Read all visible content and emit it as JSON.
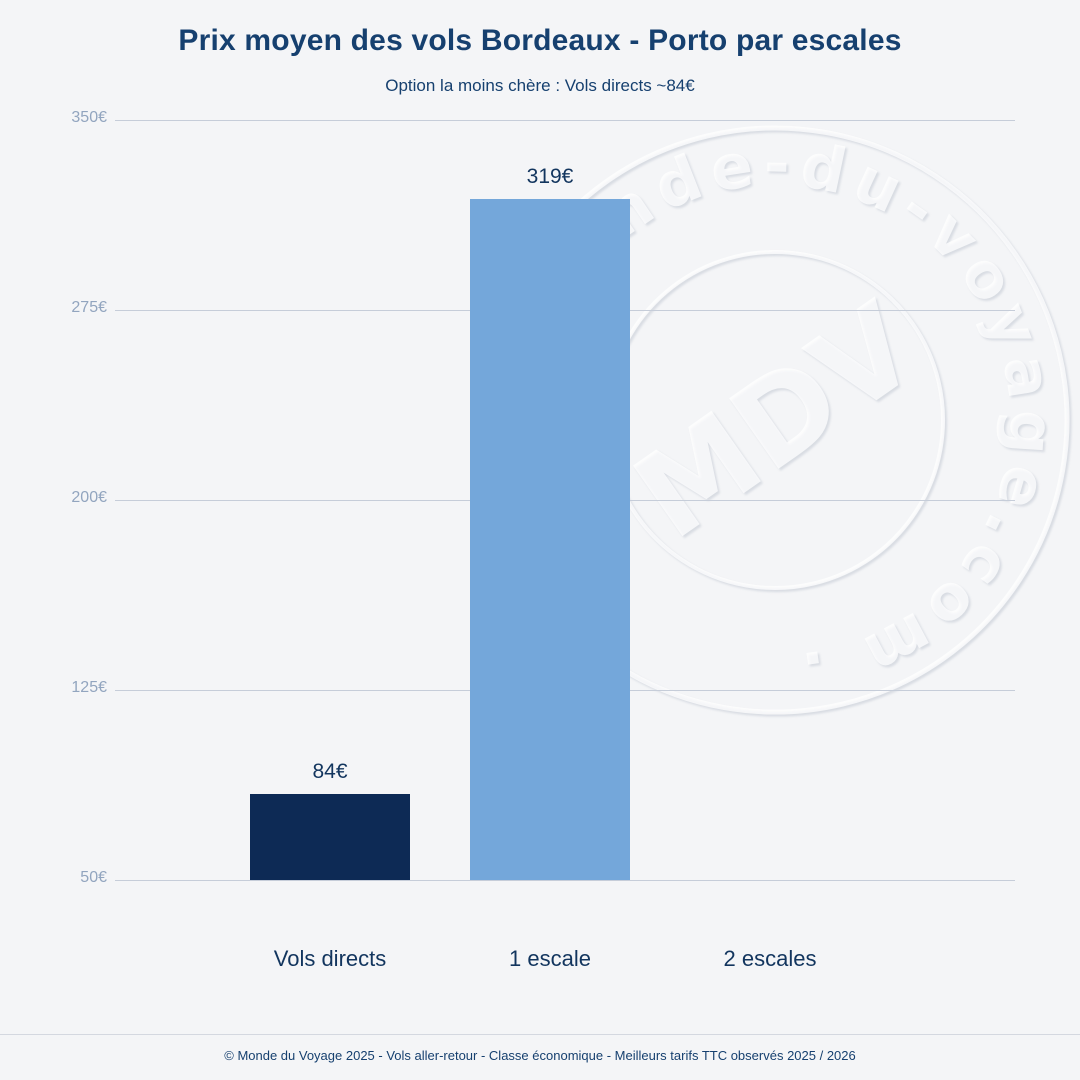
{
  "page": {
    "background": "#f4f5f7",
    "footer": {
      "text": "© Monde du Voyage 2025 - Vols aller-retour - Classe économique - Meilleurs tarifs TTC observés 2025 / 2026"
    },
    "watermark": {
      "circle_text": "www.monde-du-voyage.com .",
      "center_text": "MDV"
    }
  },
  "chart_data": {
    "type": "bar",
    "title": "Prix moyen des vols Bordeaux - Porto par escales",
    "subtitle": "Option la moins chère : Vols directs ~84€",
    "categories": [
      "Vols directs",
      "1 escale",
      "2 escales"
    ],
    "values": [
      84,
      319,
      null
    ],
    "value_labels": [
      "84€",
      "319€",
      ""
    ],
    "bar_colors": [
      "#0d2a55",
      "#74a7da",
      "#74a7da"
    ],
    "ylim": [
      50,
      350
    ],
    "yticks": [
      350,
      275,
      200,
      125,
      50
    ],
    "ytick_labels": [
      "350€",
      "275€",
      "200€",
      "125€",
      "50€"
    ],
    "ylabel": "",
    "xlabel": "",
    "grid": true,
    "legend": "none",
    "currency": "EUR"
  }
}
